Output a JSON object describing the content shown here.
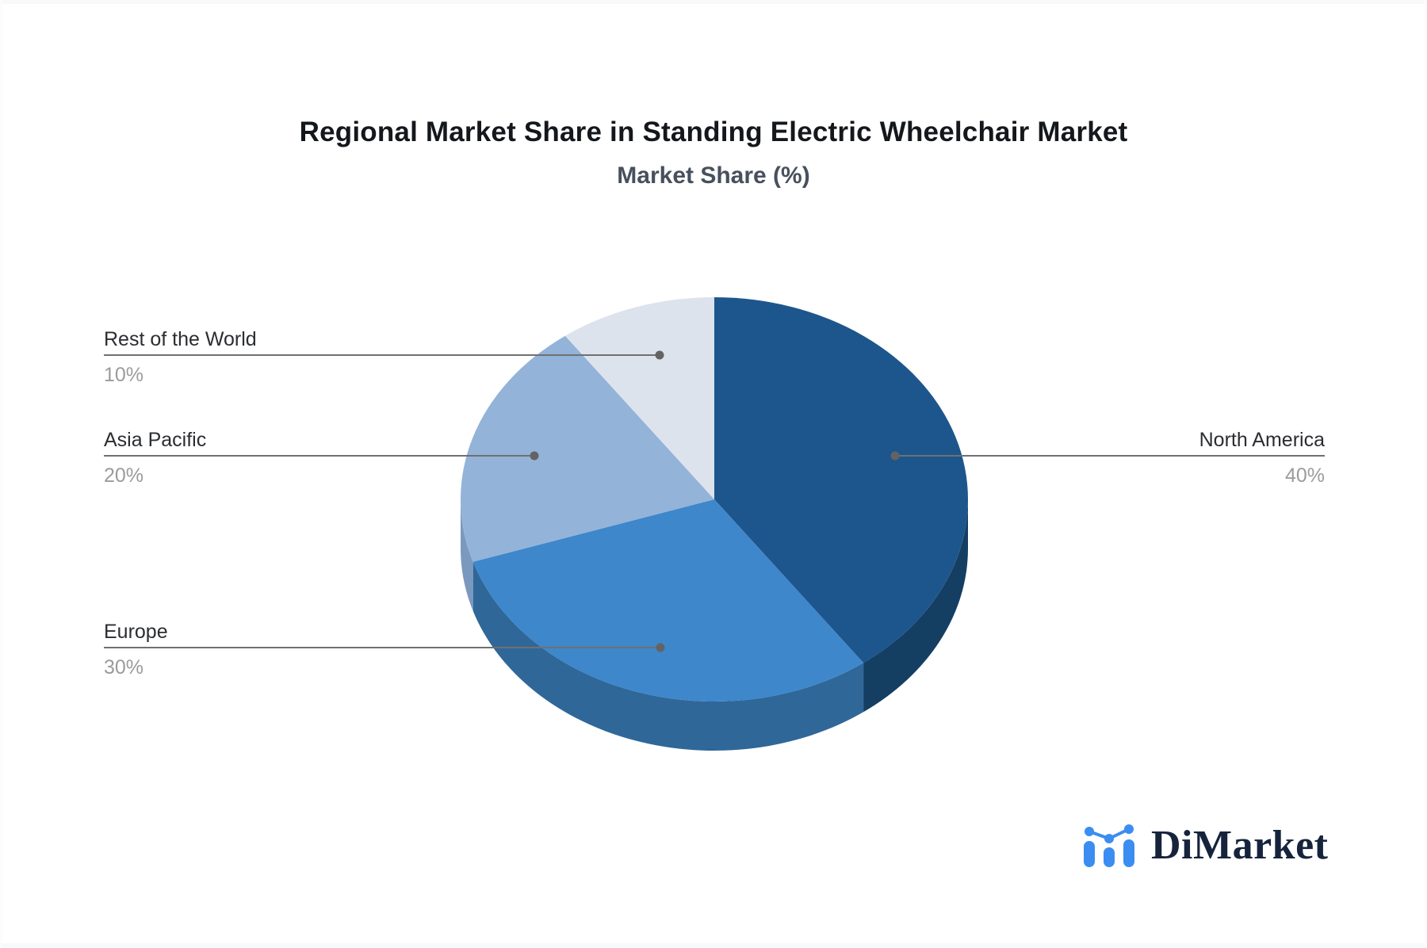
{
  "page": {
    "title": "Regional Market Share in Standing Electric Wheelchair Market",
    "subtitle": "Market Share (%)"
  },
  "chart_data": {
    "type": "pie",
    "title": "Regional Market Share in Standing Electric Wheelchair Market",
    "subtitle": "Market Share (%)",
    "unit": "%",
    "style": "3d-depth-pie",
    "start_angle_deg": 0,
    "direction": "clockwise",
    "legend_position": "callout-labels",
    "slices": [
      {
        "label": "North America",
        "value": 40,
        "display": "40%",
        "color": "#1d568c",
        "side_color": "#153e63",
        "label_side": "right"
      },
      {
        "label": "Europe",
        "value": 30,
        "display": "30%",
        "color": "#3e87cb",
        "side_color": "#2f6799",
        "label_side": "left"
      },
      {
        "label": "Asia Pacific",
        "value": 20,
        "display": "20%",
        "color": "#93b3d8",
        "side_color": "#7b99be",
        "label_side": "left"
      },
      {
        "label": "Rest of the World",
        "value": 10,
        "display": "10%",
        "color": "#dde3ed",
        "side_color": "#c3cde0",
        "label_side": "left"
      }
    ]
  },
  "branding": {
    "logo_text": "DiMarket",
    "logo_icon": "bar-chart-trend-icon",
    "icon_color": "#3b8df1",
    "text_color": "#16233c"
  },
  "colors": {
    "background": "#ffffff",
    "title_text": "#14171b",
    "subtitle_text": "#47505c",
    "label_text": "#2b2d31",
    "percent_text": "#9b9b9b",
    "leader_line": "#707070",
    "leader_dot": "#636363"
  }
}
